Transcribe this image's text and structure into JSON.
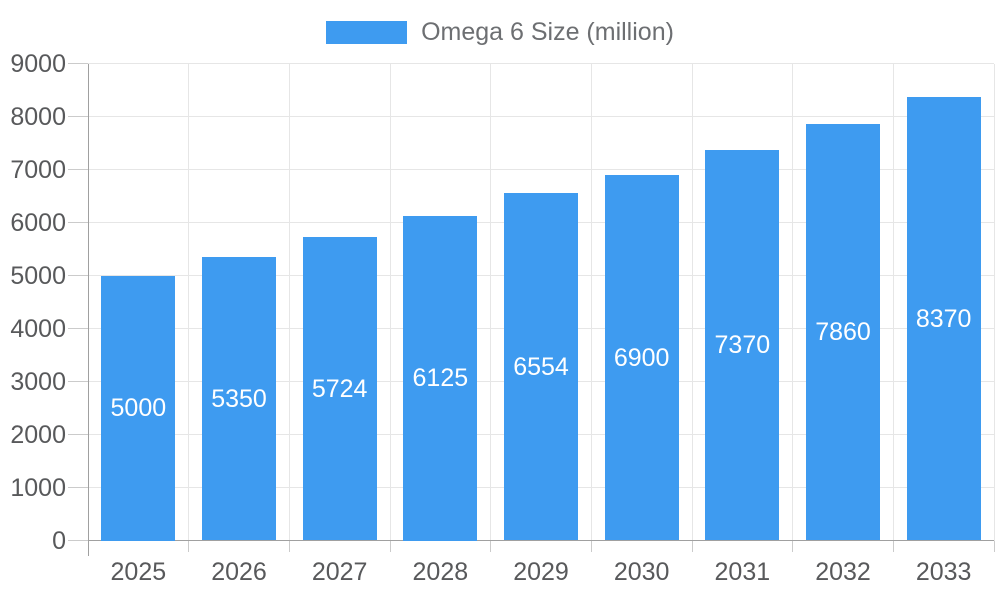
{
  "chart_data": {
    "type": "bar",
    "title": "",
    "categories": [
      "2025",
      "2026",
      "2027",
      "2028",
      "2029",
      "2030",
      "2031",
      "2032",
      "2033"
    ],
    "series": [
      {
        "name": "Omega 6 Size (million)",
        "color": "#3E9BF0",
        "values": [
          5000,
          5350,
          5724,
          6125,
          6554,
          6900,
          7370,
          7860,
          8370
        ]
      }
    ],
    "value_labels": [
      "5000",
      "5350",
      "5724",
      "6125",
      "6554",
      "6900",
      "7370",
      "7860",
      "8370"
    ],
    "value_label_style": "inside-center-white",
    "xlabel": "",
    "ylabel": "",
    "ylim": [
      0,
      9000
    ],
    "ytick_step": 1000,
    "ytick_labels": [
      "0",
      "1000",
      "2000",
      "3000",
      "4000",
      "5000",
      "6000",
      "7000",
      "8000",
      "9000"
    ],
    "grid": true,
    "legend_position": "top-center"
  },
  "colors": {
    "bar": "#3E9BF0",
    "background": "#ffffff",
    "gridline": "#e6e6e6",
    "tick": "#cbcbcb",
    "axis_line": "#a0a0a0",
    "axis_label_text": "#58595b",
    "legend_text": "#6d6f72",
    "bar_value_text": "#ffffff"
  }
}
